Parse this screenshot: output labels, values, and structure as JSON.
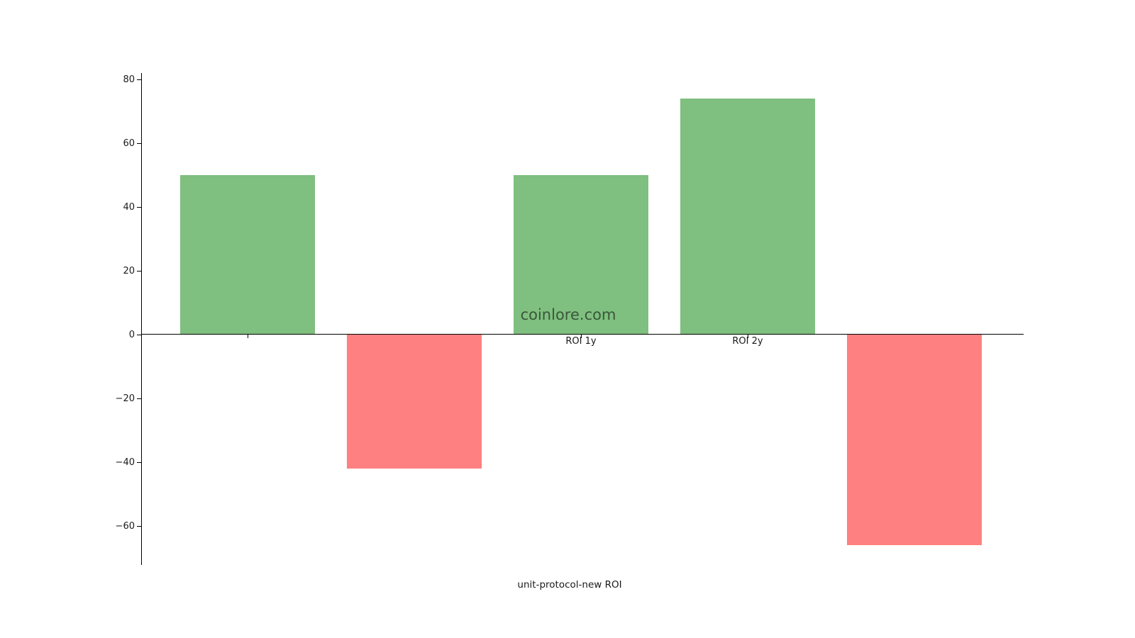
{
  "watermark": {
    "text": "coinlore.com"
  },
  "chart_data": {
    "type": "bar",
    "title": "unit-protocol-new ROI",
    "categories": [
      "",
      "",
      "ROI 1y",
      "ROI 2y",
      ""
    ],
    "values": [
      50,
      -42,
      50,
      74,
      -66
    ],
    "series": [
      {
        "name": "ROI",
        "values": [
          50,
          -42,
          50,
          74,
          -66
        ]
      }
    ],
    "bar_colors": [
      "#7fbf7f",
      "#ff8080",
      "#7fbf7f",
      "#7fbf7f",
      "#ff8080"
    ],
    "positive_color": "#7fbf7f",
    "negative_color": "#ff8080",
    "y_ticks": [
      80,
      60,
      40,
      20,
      0,
      -20,
      -40,
      -60
    ],
    "ylim": [
      -72,
      82
    ],
    "xlabel": "",
    "ylabel": "",
    "grid": false,
    "legend": "none",
    "axis_color": "#000000",
    "watermark": "coinlore.com"
  }
}
